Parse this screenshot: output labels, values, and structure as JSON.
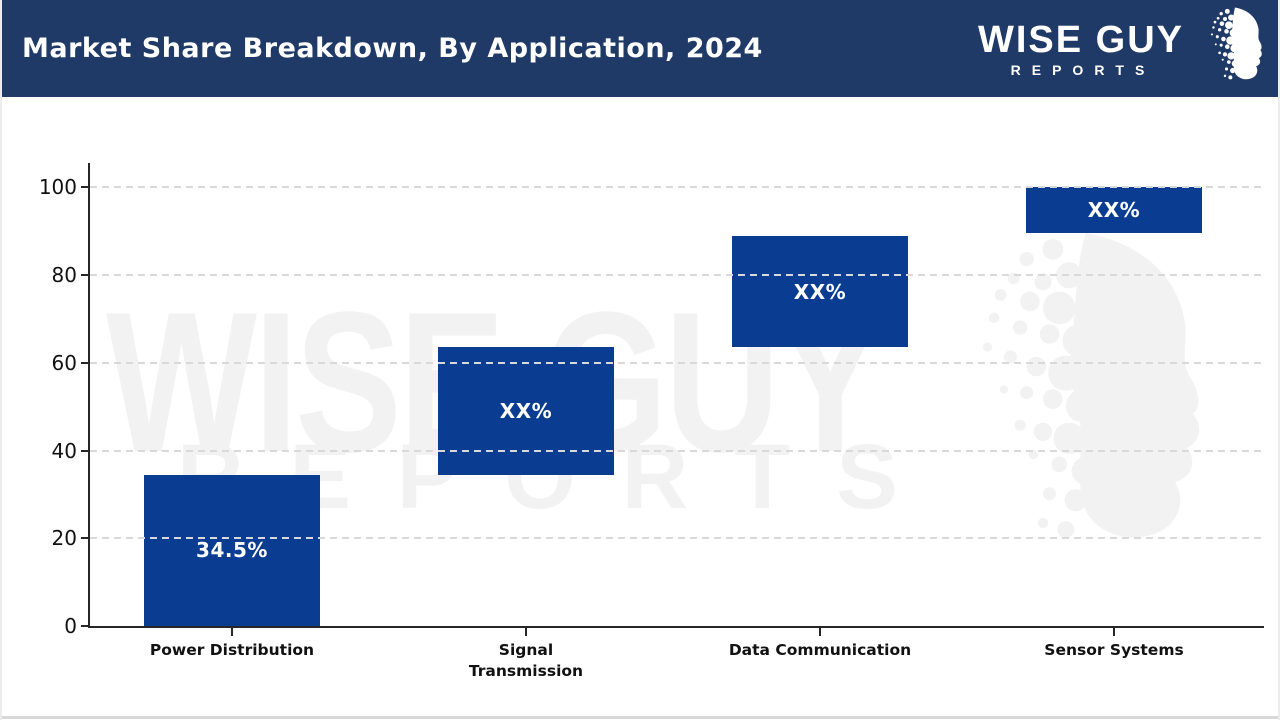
{
  "header": {
    "title": "Market Share Breakdown, By Application, 2024"
  },
  "logo": {
    "line1": "WISE GUY",
    "line2": "REPORTS"
  },
  "watermark": {
    "line1": "WISE GUY",
    "line2": "REPORTS"
  },
  "colors": {
    "header_bg": "#1f3a66",
    "bar_blue": "#0a3d91",
    "watermark_gray": "#f2f2f2",
    "grid_gray": "#d9d9d9",
    "axis_dark": "#262626"
  },
  "chart_data": {
    "type": "bar",
    "subtype": "waterfall",
    "title": "Market Share Breakdown, By Application, 2024",
    "categories": [
      "Power Distribution",
      "Signal Transmission",
      "Data Communication",
      "Sensor Systems"
    ],
    "category_lines": [
      [
        "Power Distribution"
      ],
      [
        "Signal",
        "Transmission"
      ],
      [
        "Data Communication"
      ],
      [
        "Sensor Systems"
      ]
    ],
    "bars": [
      {
        "category": "Power Distribution",
        "start": 0,
        "end": 34.5,
        "label": "34.5%"
      },
      {
        "category": "Signal Transmission",
        "start": 34.5,
        "end": 63.5,
        "label": "XX%"
      },
      {
        "category": "Data Communication",
        "start": 63.5,
        "end": 89,
        "label": "XX%"
      },
      {
        "category": "Sensor Systems",
        "start": 89.5,
        "end": 100,
        "label": "XX%"
      }
    ],
    "yticks": [
      0,
      20,
      40,
      60,
      80,
      100
    ],
    "ylim": [
      0,
      105
    ],
    "xlabel": "",
    "ylabel": "",
    "grid": "dashed-horizontal",
    "legend": null,
    "bar_color": "#0a3d91"
  }
}
